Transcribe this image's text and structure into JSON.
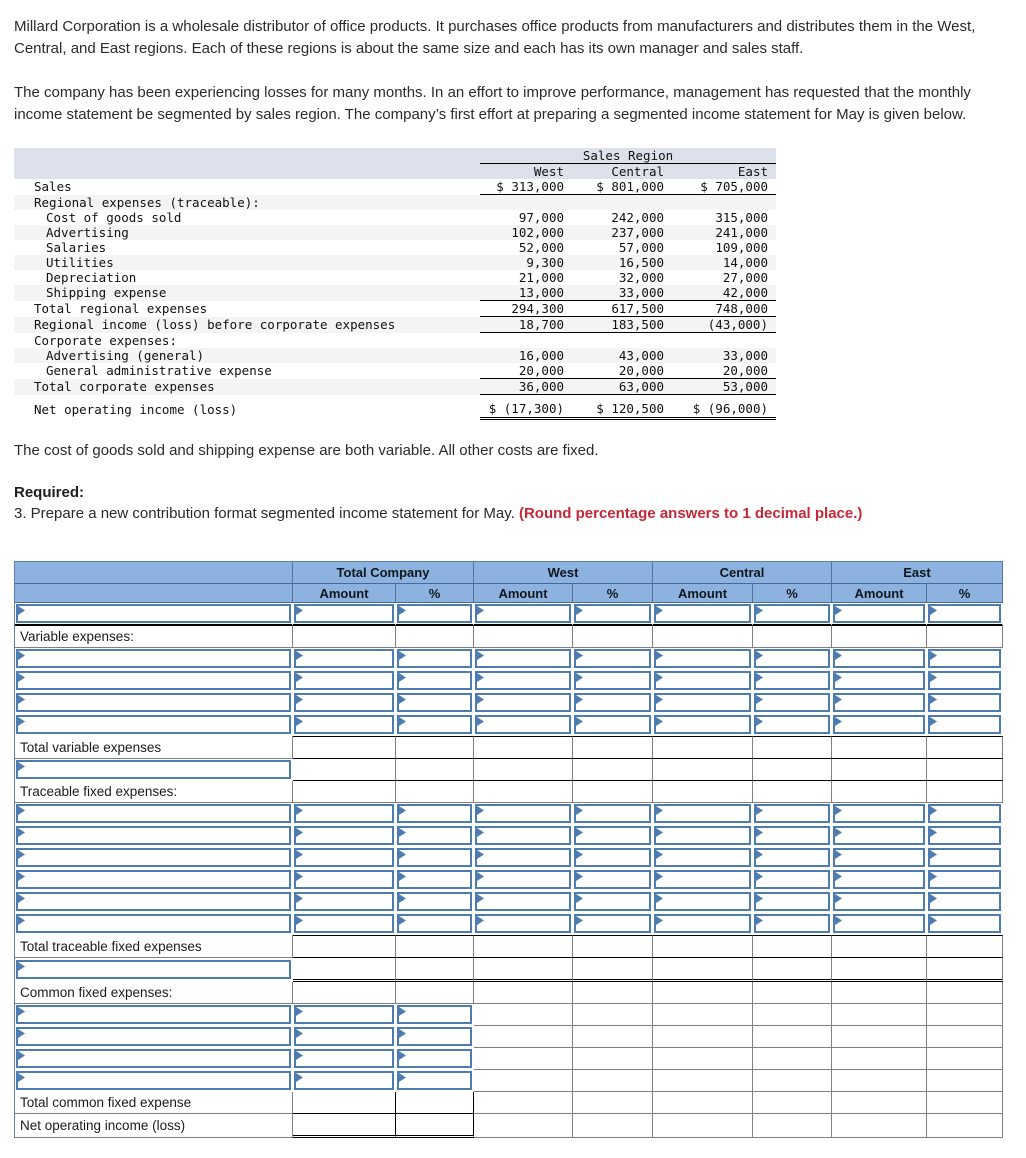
{
  "colors": {
    "header_blue": "#8CB3DF",
    "input_border_blue": "#4E7CB1",
    "report_header_bg": "#dce1eb",
    "report_shade_bg": "#f4f4f5",
    "emphasis_red": "#C62837",
    "grid_gray": "#7f7f7f"
  },
  "intro": {
    "p1": "Millard Corporation is a wholesale distributor of office products. It purchases office products from manufacturers and distributes them in the West, Central, and East regions. Each of these regions is about the same size and each has its own manager and sales staff.",
    "p2": "The company has been experiencing losses for many months. In an effort to improve performance, management has requested that the monthly income statement be segmented by sales region. The company’s first effort at preparing a segmented income statement for May is given below."
  },
  "report": {
    "title": "Sales Region",
    "columns": [
      "West",
      "Central",
      "East"
    ],
    "rows": [
      {
        "label": "Sales",
        "values": [
          "$ 313,000",
          "$ 801,000",
          "$ 705,000"
        ],
        "indent": 0,
        "shade": false,
        "underline": "single"
      },
      {
        "label": "Regional expenses (traceable):",
        "values": [
          "",
          "",
          ""
        ],
        "indent": 0,
        "shade": true
      },
      {
        "label": "Cost of goods sold",
        "values": [
          "97,000",
          "242,000",
          "315,000"
        ],
        "indent": 1,
        "shade": false
      },
      {
        "label": "Advertising",
        "values": [
          "102,000",
          "237,000",
          "241,000"
        ],
        "indent": 1,
        "shade": true
      },
      {
        "label": "Salaries",
        "values": [
          "52,000",
          "57,000",
          "109,000"
        ],
        "indent": 1,
        "shade": false
      },
      {
        "label": "Utilities",
        "values": [
          "9,300",
          "16,500",
          "14,000"
        ],
        "indent": 1,
        "shade": true
      },
      {
        "label": "Depreciation",
        "values": [
          "21,000",
          "32,000",
          "27,000"
        ],
        "indent": 1,
        "shade": false
      },
      {
        "label": "Shipping expense",
        "values": [
          "13,000",
          "33,000",
          "42,000"
        ],
        "indent": 1,
        "shade": true,
        "underline": "single"
      },
      {
        "label": "Total regional expenses",
        "values": [
          "294,300",
          "617,500",
          "748,000"
        ],
        "indent": 0,
        "shade": false,
        "underline": "single"
      },
      {
        "label": "Regional income (loss) before corporate expenses",
        "values": [
          "18,700",
          "183,500",
          "(43,000)"
        ],
        "indent": 0,
        "shade": true,
        "underline": "single"
      },
      {
        "label": "Corporate expenses:",
        "values": [
          "",
          "",
          ""
        ],
        "indent": 0,
        "shade": false
      },
      {
        "label": "Advertising (general)",
        "values": [
          "16,000",
          "43,000",
          "33,000"
        ],
        "indent": 1,
        "shade": true
      },
      {
        "label": "General administrative expense",
        "values": [
          "20,000",
          "20,000",
          "20,000"
        ],
        "indent": 1,
        "shade": false,
        "underline": "single"
      },
      {
        "label": "Total corporate expenses",
        "values": [
          "36,000",
          "63,000",
          "53,000"
        ],
        "indent": 0,
        "shade": true,
        "underline": "single"
      },
      {
        "label": "Net operating income (loss)",
        "values": [
          "$ (17,300)",
          "$ 120,500",
          "$ (96,000)"
        ],
        "indent": 0,
        "shade": false,
        "underline": "double",
        "spacer": true
      }
    ]
  },
  "note": "The cost of goods sold and shipping expense are both variable. All other costs are fixed.",
  "required": {
    "title": "Required:",
    "item": "3. Prepare a new contribution format segmented income statement for May. ",
    "emphasis": "(Round percentage answers to 1 decimal place.)"
  },
  "worksheet": {
    "column_groups": [
      "Total Company",
      "West",
      "Central",
      "East"
    ],
    "sub_headers": [
      "Amount",
      "%"
    ],
    "rows": [
      {
        "kind": "inputs_row",
        "divider_bottom": "black"
      },
      {
        "kind": "section",
        "label": "Variable expenses:"
      },
      {
        "kind": "inputs_row"
      },
      {
        "kind": "inputs_row"
      },
      {
        "kind": "inputs_row"
      },
      {
        "kind": "inputs_row"
      },
      {
        "kind": "total",
        "label": "Total variable expenses"
      },
      {
        "kind": "label_input",
        "bottom": "black"
      },
      {
        "kind": "section",
        "label": "Traceable fixed expenses:"
      },
      {
        "kind": "inputs_row"
      },
      {
        "kind": "inputs_row"
      },
      {
        "kind": "inputs_row"
      },
      {
        "kind": "inputs_row"
      },
      {
        "kind": "inputs_row"
      },
      {
        "kind": "inputs_row"
      },
      {
        "kind": "total",
        "label": "Total traceable fixed expenses"
      },
      {
        "kind": "label_input",
        "bottom": "double"
      },
      {
        "kind": "section",
        "label": "Common fixed expenses:"
      },
      {
        "kind": "inputs_tc"
      },
      {
        "kind": "inputs_tc"
      },
      {
        "kind": "inputs_tc"
      },
      {
        "kind": "inputs_tc"
      },
      {
        "kind": "total_tc",
        "label": "Total common fixed expense",
        "bottom": "black"
      },
      {
        "kind": "total_tc",
        "label": "Net operating income (loss)",
        "bottom": "double"
      }
    ]
  }
}
